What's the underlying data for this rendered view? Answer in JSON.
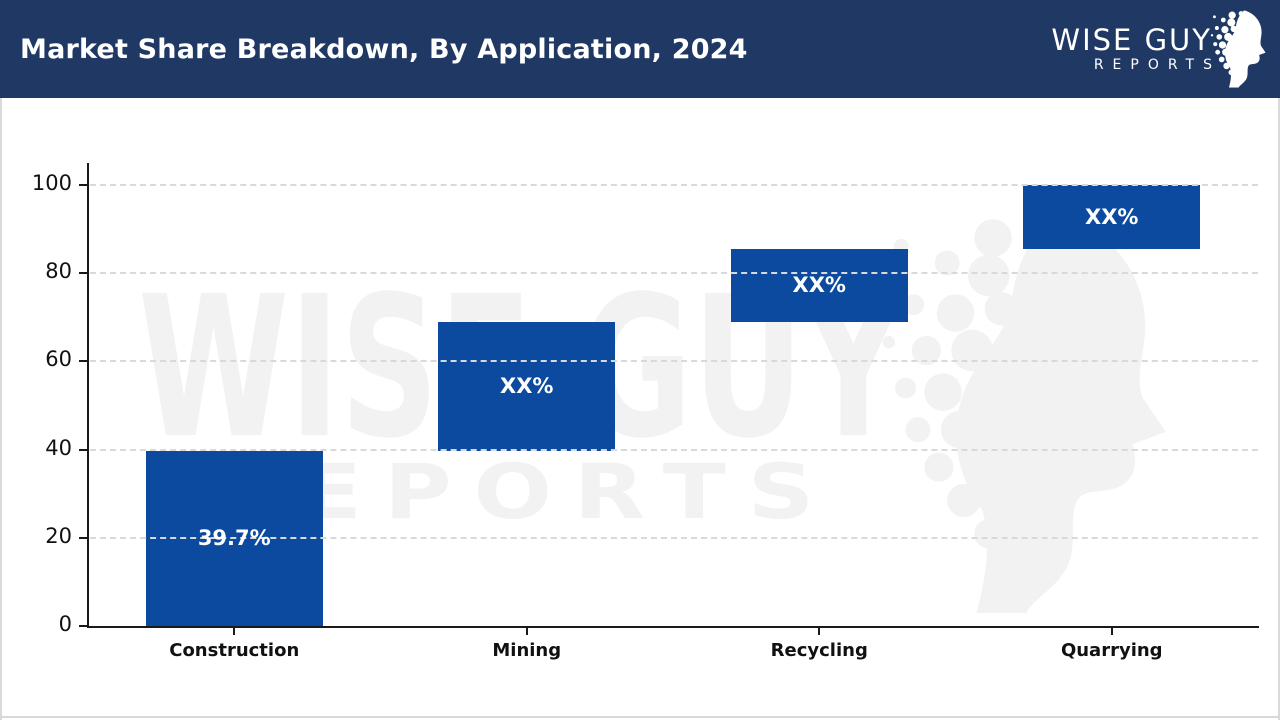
{
  "header": {
    "title": "Market Share Breakdown, By Application, 2024",
    "bg_color": "#1f3864",
    "logo": {
      "line1": "WISE GUY",
      "line2": "REPORTS"
    }
  },
  "watermark": {
    "line1": "WISE GUY",
    "line2": "REPORTS",
    "color": "#f2f2f2"
  },
  "colors": {
    "header_bg": "#1f3864",
    "bar_blue": "#0b4a9e",
    "gridline": "#d9d9d9",
    "axis": "#1a1a1a",
    "edge_line": "#d9d9d9"
  },
  "chart_data": {
    "type": "bar",
    "variant": "waterfall",
    "title": "Market Share Breakdown, By Application, 2024",
    "categories": [
      "Construction",
      "Mining",
      "Recycling",
      "Quarrying"
    ],
    "segments": [
      {
        "category": "Construction",
        "start": 0,
        "end": 39.7,
        "label": "39.7%"
      },
      {
        "category": "Mining",
        "start": 39.7,
        "end": 69,
        "label": "XX%"
      },
      {
        "category": "Recycling",
        "start": 69,
        "end": 85.5,
        "label": "XX%"
      },
      {
        "category": "Quarrying",
        "start": 85.5,
        "end": 100,
        "label": "XX%"
      }
    ],
    "xlabel": "",
    "ylabel": "",
    "ylim": [
      0,
      105
    ],
    "yticks": [
      0,
      20,
      40,
      60,
      80,
      100
    ],
    "grid": {
      "horizontal": true,
      "style": "dashed",
      "color": "#d9d9d9"
    },
    "legend": null,
    "bar_color": "#0b4a9e",
    "bar_label_color": "#ffffff"
  }
}
